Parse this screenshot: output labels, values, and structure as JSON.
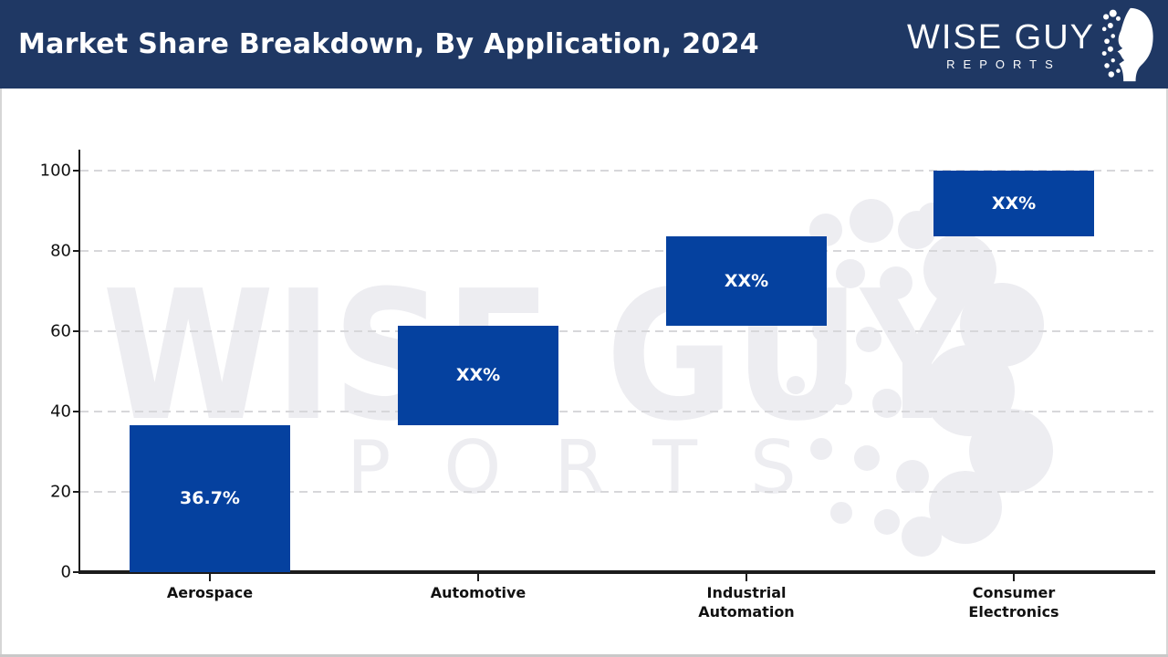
{
  "header": {
    "title": "Market Share Breakdown, By Application, 2024",
    "logo": {
      "wordmark": "WISE GUY",
      "subtitle": "REPORTS"
    }
  },
  "watermark": {
    "wordmark": "WISE GUY",
    "subtitle": "REPORTS"
  },
  "chart_data": {
    "type": "bar",
    "variant": "waterfall-breakdown",
    "title": "Market Share Breakdown, By Application, 2024",
    "categories": [
      {
        "lines": [
          "Aerospace"
        ]
      },
      {
        "lines": [
          "Automotive"
        ]
      },
      {
        "lines": [
          "Industrial",
          "Automation"
        ]
      },
      {
        "lines": [
          "Consumer",
          "Electronics"
        ]
      }
    ],
    "segments": [
      {
        "category": "Aerospace",
        "start": 0,
        "end": 36.7,
        "label": "36.7%"
      },
      {
        "category": "Automotive",
        "start": 36.7,
        "end": 61.4,
        "label": "XX%"
      },
      {
        "category": "Industrial Automation",
        "start": 61.4,
        "end": 83.6,
        "label": "XX%"
      },
      {
        "category": "Consumer Electronics",
        "start": 83.6,
        "end": 100,
        "label": "XX%"
      }
    ],
    "ylim": [
      0,
      100
    ],
    "yticks": [
      0,
      20,
      40,
      60,
      80,
      100
    ],
    "grid": "horizontal-dashed",
    "legend": "none",
    "bar_color": "#05419f",
    "bar_label_color": "#ffffff"
  },
  "colors": {
    "header_bg": "#1f3864",
    "bar": "#05419f",
    "watermark": "#ededf1",
    "grid": "#d7d7da",
    "axis": "#1c1c1c"
  }
}
